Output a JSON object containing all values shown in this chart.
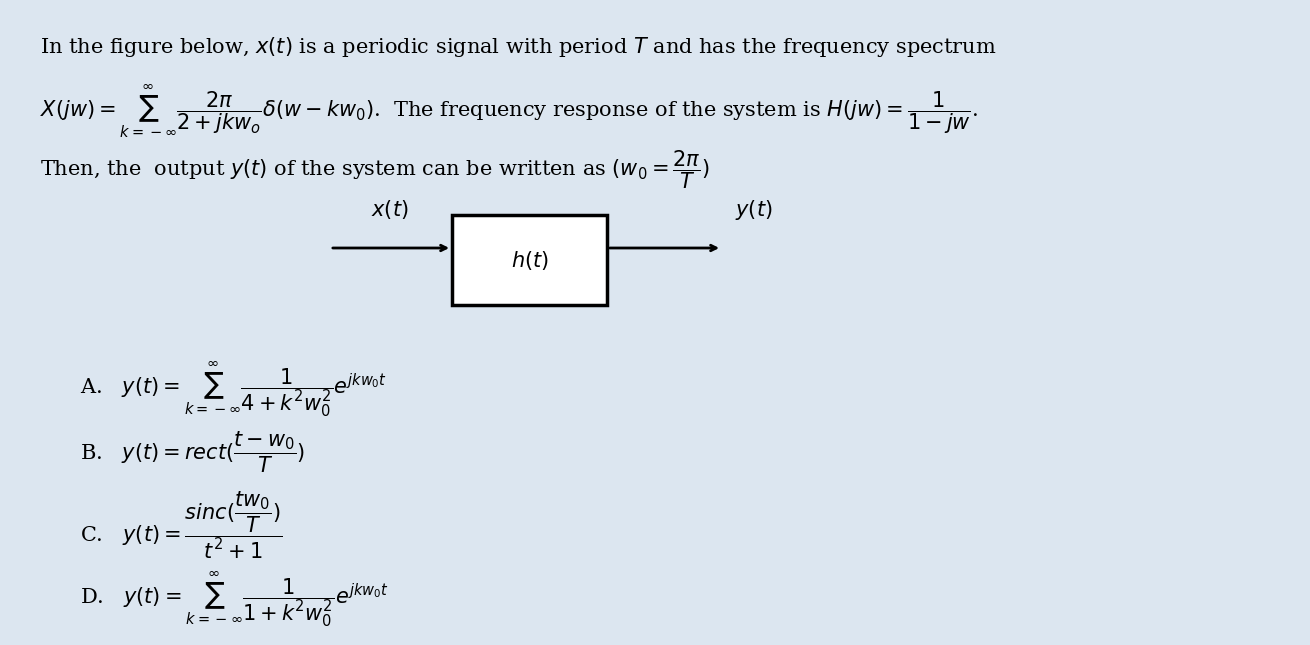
{
  "background_color": "#dce6f0",
  "text_color": "#000000",
  "fig_width": 13.1,
  "fig_height": 6.45,
  "fs_main": 15,
  "fs_math": 15
}
